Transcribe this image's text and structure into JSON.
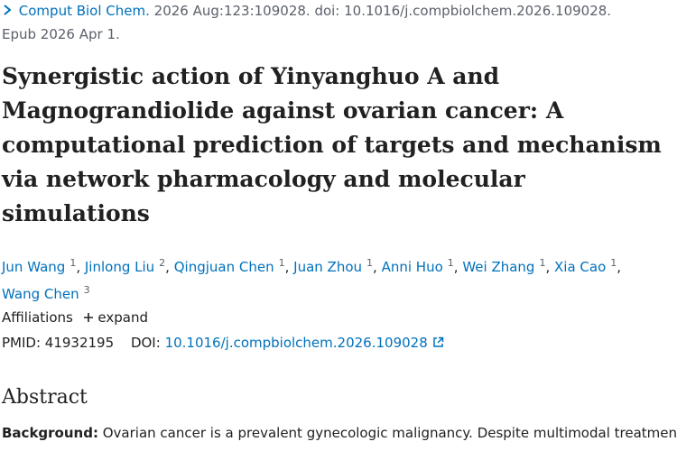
{
  "citation": {
    "journal": "Comput Biol Chem.",
    "details": "2026 Aug:123:109028. doi: 10.1016/j.compbiolchem.2026.109028.",
    "epub": "Epub 2026 Apr 1."
  },
  "title": "Synergistic action of Yinyanghuo A and Magnograndiolide against ovarian cancer: A computational prediction of targets and mechanism via network pharmacology and molecular simulations",
  "author_separator": ",",
  "authors": [
    {
      "name": "Jun Wang",
      "affiliation": "1"
    },
    {
      "name": "Jinlong Liu",
      "affiliation": "2"
    },
    {
      "name": "Qingjuan Chen",
      "affiliation": "1"
    },
    {
      "name": "Juan Zhou",
      "affiliation": "1"
    },
    {
      "name": "Anni Huo",
      "affiliation": "1"
    },
    {
      "name": "Wei Zhang",
      "affiliation": "1"
    },
    {
      "name": "Xia Cao",
      "affiliation": "1"
    },
    {
      "name": "Wang Chen",
      "affiliation": "3"
    }
  ],
  "affiliations": {
    "label": "Affiliations",
    "toggle": "expand"
  },
  "identifiers": {
    "pmid_label": "PMID:",
    "pmid": "41932195",
    "doi_label": "DOI:",
    "doi": "10.1016/j.compbiolchem.2026.109028"
  },
  "abstract": {
    "heading": "Abstract",
    "label": "Background:",
    "text": "Ovarian cancer is a prevalent gynecologic malignancy. Despite multimodal treatment"
  }
}
